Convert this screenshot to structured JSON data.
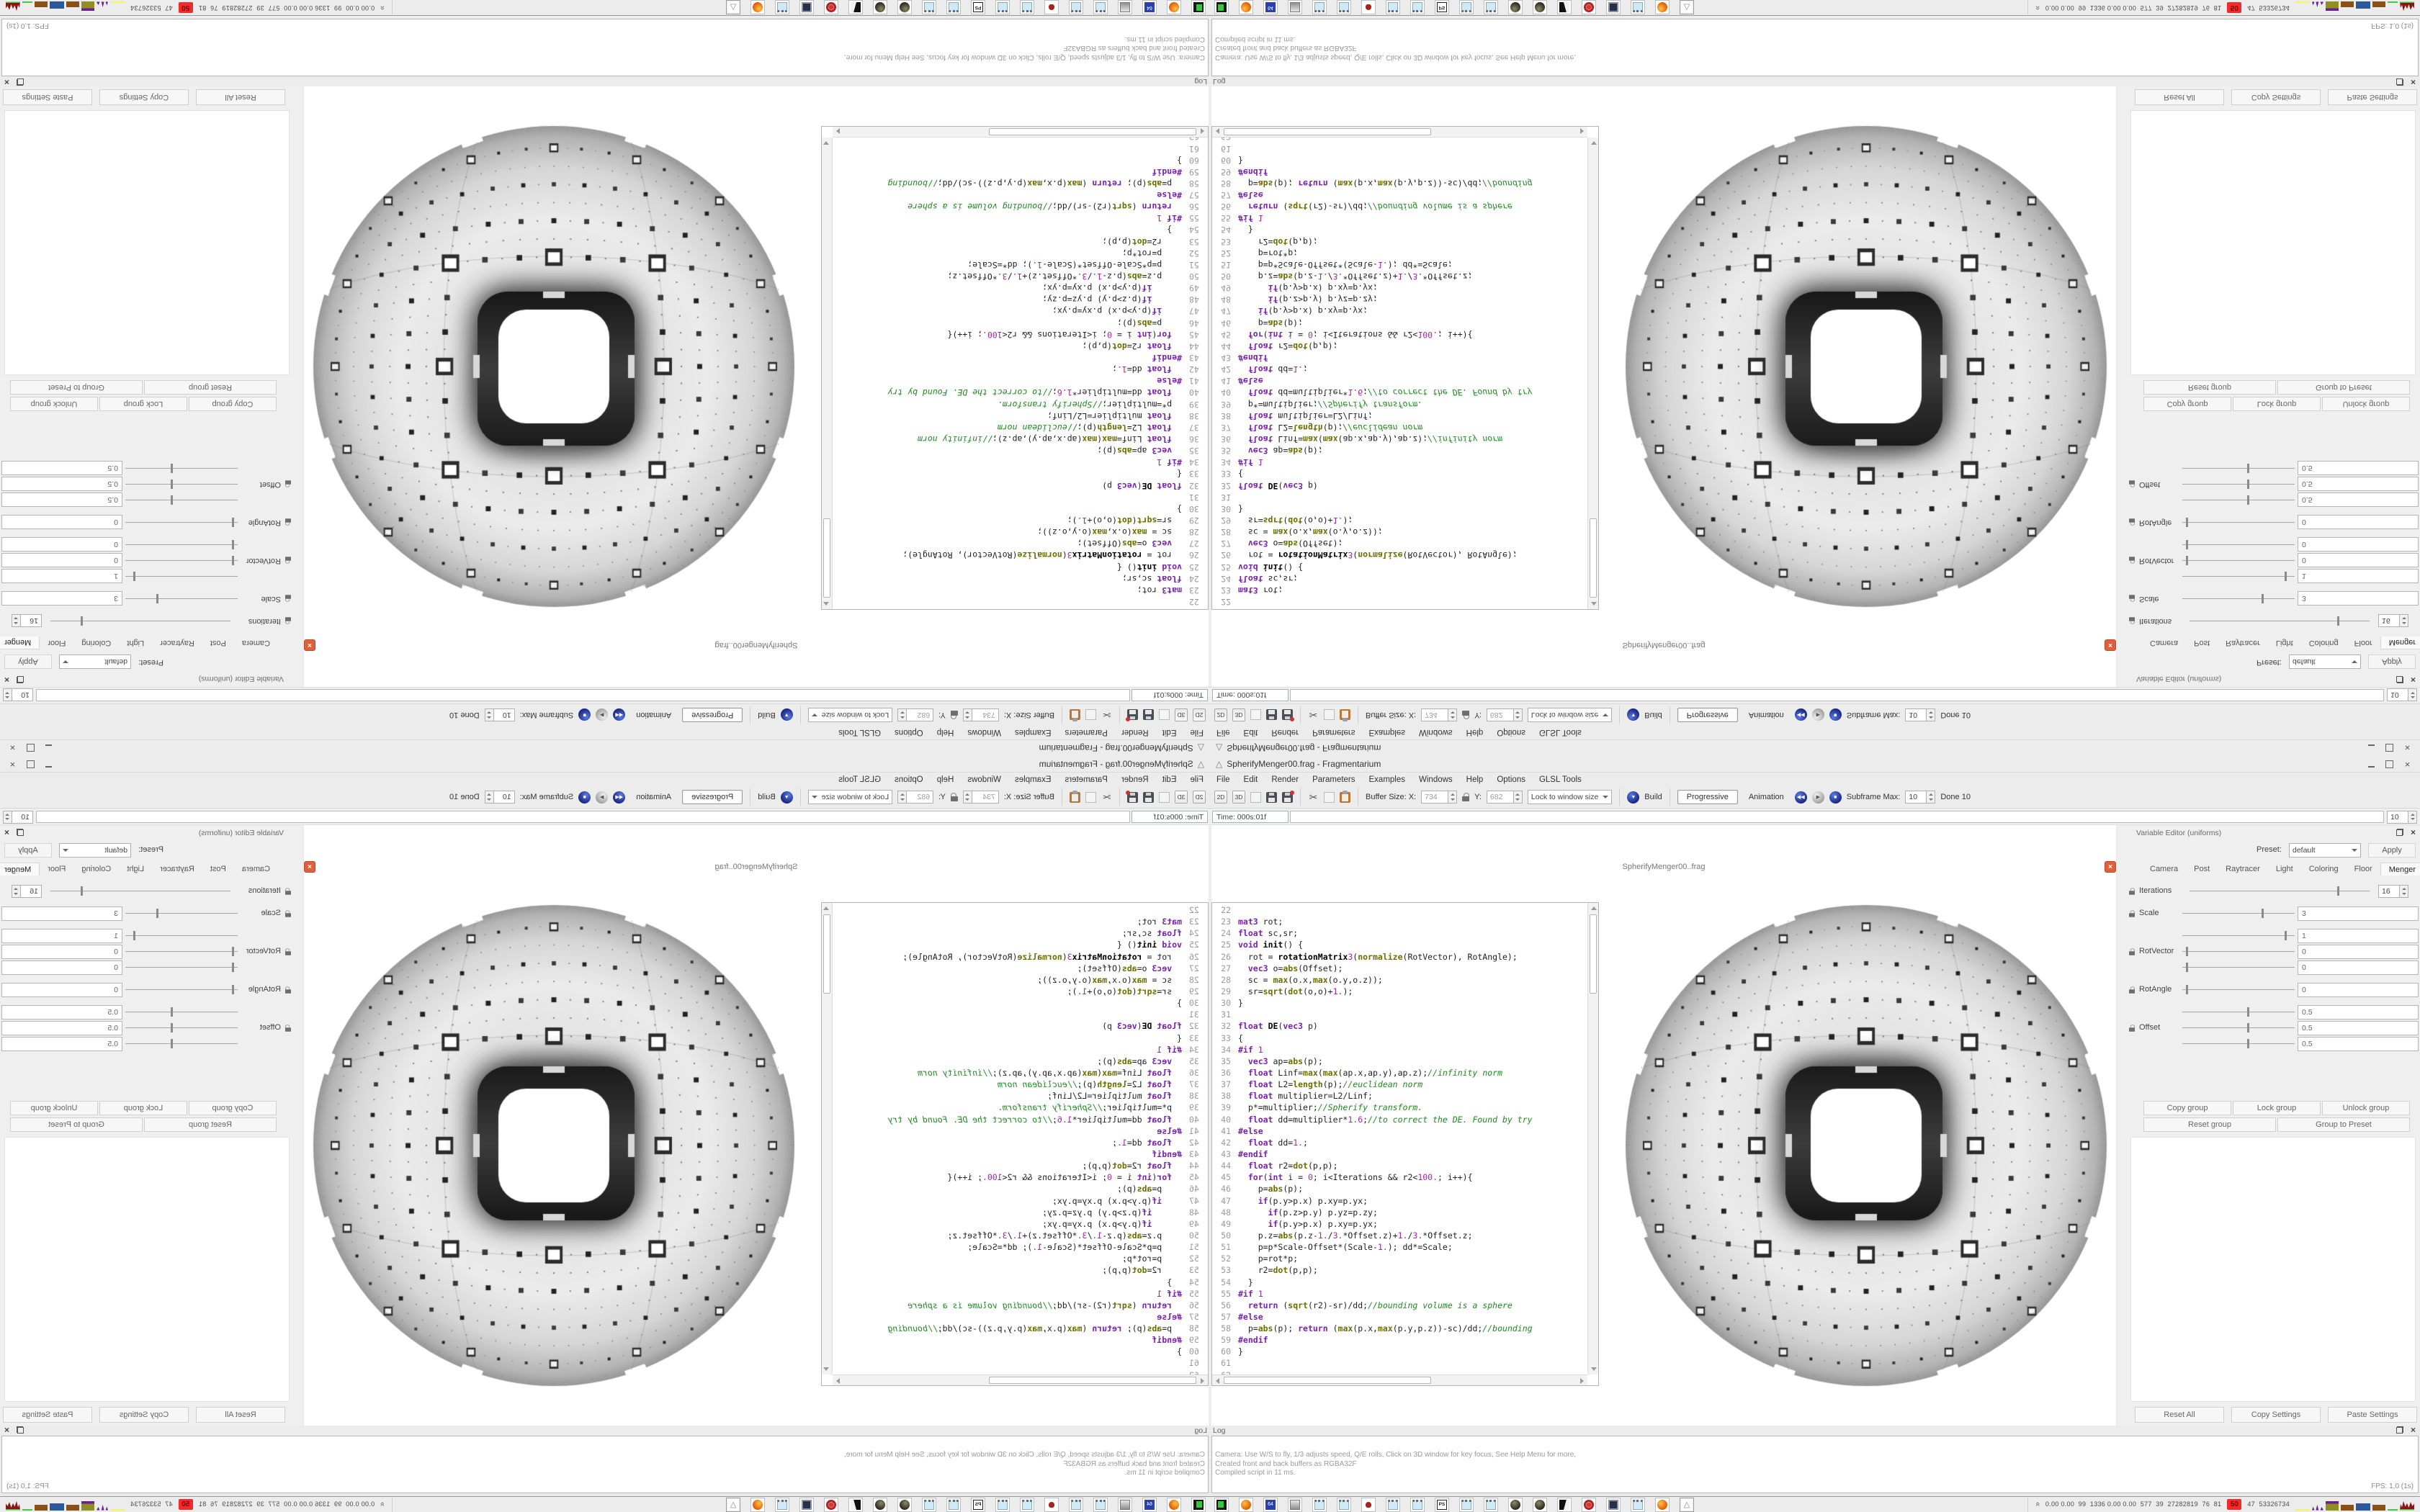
{
  "window": {
    "title": "SpherifyMenger00.frag - Fragmentarium",
    "controls": [
      "minimize",
      "maximize",
      "close"
    ]
  },
  "menu": {
    "items": [
      "File",
      "Edit",
      "Render",
      "Parameters",
      "Examples",
      "Windows",
      "Help",
      "Options",
      "GLSL Tools"
    ]
  },
  "toolbar": {
    "btn_2d": "2D",
    "btn_3d": "3D",
    "buffer_label": "Buffer Size: X:",
    "buffer_x": "734",
    "buffer_y_label": "Y:",
    "buffer_y": "682",
    "lock_combo": "Lock to window size",
    "build": "Build",
    "progressive": "Progressive",
    "animation": "Animation",
    "subframe_label": "Subframe Max:",
    "subframe_value": "10",
    "done": "Done 10"
  },
  "timebar": {
    "time_label": "Time: 000s:01f",
    "right_value": "10"
  },
  "editor_tab": {
    "label": "SpherifyMenger00..frag",
    "close_glyph": "x"
  },
  "code": {
    "lines": [
      [
        "22"
      ],
      [
        "23",
        [
          "k",
          "mat3"
        ],
        [
          "p",
          " rot;"
        ]
      ],
      [
        "24",
        [
          "k",
          "float"
        ],
        [
          "p",
          " sc,sr;"
        ]
      ],
      [
        "25",
        [
          "k",
          "void"
        ],
        [
          "p",
          " "
        ],
        [
          "f",
          "init"
        ],
        [
          "p",
          "() {"
        ]
      ],
      [
        "26",
        [
          "p",
          "  rot = "
        ],
        [
          "f",
          "rotationMatrix"
        ],
        [
          "n",
          "3"
        ],
        [
          "p",
          "("
        ],
        [
          "b",
          "normalize"
        ],
        [
          "p",
          "(RotVector), RotAngle);"
        ]
      ],
      [
        "27",
        [
          "p",
          "  "
        ],
        [
          "k",
          "vec3"
        ],
        [
          "p",
          " o="
        ],
        [
          "b",
          "abs"
        ],
        [
          "p",
          "(Offset);"
        ]
      ],
      [
        "28",
        [
          "p",
          "  sc = "
        ],
        [
          "b",
          "max"
        ],
        [
          "p",
          "(o.x,"
        ],
        [
          "b",
          "max"
        ],
        [
          "p",
          "(o.y,o.z));"
        ]
      ],
      [
        "29",
        [
          "p",
          "  sr="
        ],
        [
          "b",
          "sqrt"
        ],
        [
          "p",
          "("
        ],
        [
          "b",
          "dot"
        ],
        [
          "p",
          "(o,o)+"
        ],
        [
          "n",
          "1."
        ],
        [
          "p",
          ");"
        ]
      ],
      [
        "30",
        [
          "p",
          "}"
        ]
      ],
      [
        "31"
      ],
      [
        "32",
        [
          "k",
          "float"
        ],
        [
          "p",
          " "
        ],
        [
          "f",
          "DE"
        ],
        [
          "p",
          "("
        ],
        [
          "k",
          "vec3"
        ],
        [
          "p",
          " p)"
        ]
      ],
      [
        "33",
        [
          "p",
          "{"
        ]
      ],
      [
        "34",
        [
          "k",
          "#if"
        ],
        [
          "p",
          " "
        ],
        [
          "n",
          "1"
        ]
      ],
      [
        "35",
        [
          "p",
          "  "
        ],
        [
          "k",
          "vec3"
        ],
        [
          "p",
          " ap="
        ],
        [
          "b",
          "abs"
        ],
        [
          "p",
          "(p);"
        ]
      ],
      [
        "36",
        [
          "p",
          "  "
        ],
        [
          "k",
          "float"
        ],
        [
          "p",
          " Linf="
        ],
        [
          "b",
          "max"
        ],
        [
          "p",
          "("
        ],
        [
          "b",
          "max"
        ],
        [
          "p",
          "(ap.x,ap.y),ap.z);"
        ],
        [
          "c",
          "//infinity norm"
        ]
      ],
      [
        "37",
        [
          "p",
          "  "
        ],
        [
          "k",
          "float"
        ],
        [
          "p",
          " L2="
        ],
        [
          "b",
          "length"
        ],
        [
          "p",
          "(p);"
        ],
        [
          "c",
          "//euclidean norm"
        ]
      ],
      [
        "38",
        [
          "p",
          "  "
        ],
        [
          "k",
          "float"
        ],
        [
          "p",
          " multiplier=L2/Linf;"
        ]
      ],
      [
        "39",
        [
          "p",
          "  p*=multiplier;"
        ],
        [
          "c",
          "//Spherify transform."
        ]
      ],
      [
        "40",
        [
          "p",
          "  "
        ],
        [
          "k",
          "float"
        ],
        [
          "p",
          " dd=multiplier*"
        ],
        [
          "n",
          "1.6"
        ],
        [
          "p",
          ";"
        ],
        [
          "c",
          "//to correct the DE. Found by try"
        ]
      ],
      [
        "41",
        [
          "k",
          "#else"
        ]
      ],
      [
        "42",
        [
          "p",
          "  "
        ],
        [
          "k",
          "float"
        ],
        [
          "p",
          " dd="
        ],
        [
          "n",
          "1."
        ],
        [
          "p",
          ";"
        ]
      ],
      [
        "43",
        [
          "k",
          "#endif"
        ]
      ],
      [
        "44",
        [
          "p",
          "  "
        ],
        [
          "k",
          "float"
        ],
        [
          "p",
          " r2="
        ],
        [
          "b",
          "dot"
        ],
        [
          "p",
          "(p,p);"
        ]
      ],
      [
        "45",
        [
          "p",
          "  "
        ],
        [
          "k",
          "for"
        ],
        [
          "p",
          "("
        ],
        [
          "k",
          "int"
        ],
        [
          "p",
          " i = "
        ],
        [
          "n",
          "0"
        ],
        [
          "p",
          "; i<Iterations && r2<"
        ],
        [
          "n",
          "100."
        ],
        [
          "p",
          "; i++){"
        ]
      ],
      [
        "46",
        [
          "p",
          "    p="
        ],
        [
          "b",
          "abs"
        ],
        [
          "p",
          "(p);"
        ]
      ],
      [
        "47",
        [
          "p",
          "    "
        ],
        [
          "k",
          "if"
        ],
        [
          "p",
          "(p.y>p.x) p.xy=p.yx;"
        ]
      ],
      [
        "48",
        [
          "p",
          "      "
        ],
        [
          "k",
          "if"
        ],
        [
          "p",
          "(p.z>p.y) p.yz=p.zy;"
        ]
      ],
      [
        "49",
        [
          "p",
          "      "
        ],
        [
          "k",
          "if"
        ],
        [
          "p",
          "(p.y>p.x) p.xy=p.yx;"
        ]
      ],
      [
        "50",
        [
          "p",
          "    p.z="
        ],
        [
          "b",
          "abs"
        ],
        [
          "p",
          "(p.z-"
        ],
        [
          "n",
          "1."
        ],
        [
          "p",
          "/"
        ],
        [
          "n",
          "3."
        ],
        [
          "p",
          "*Offset.z)+"
        ],
        [
          "n",
          "1."
        ],
        [
          "p",
          "/"
        ],
        [
          "n",
          "3."
        ],
        [
          "p",
          "*Offset.z;"
        ]
      ],
      [
        "51",
        [
          "p",
          "    p=p*Scale-Offset*(Scale-"
        ],
        [
          "n",
          "1."
        ],
        [
          "p",
          "); dd*=Scale;"
        ]
      ],
      [
        "52",
        [
          "p",
          "    p=rot*p;"
        ]
      ],
      [
        "53",
        [
          "p",
          "    r2="
        ],
        [
          "b",
          "dot"
        ],
        [
          "p",
          "(p,p);"
        ]
      ],
      [
        "54",
        [
          "p",
          "  }"
        ]
      ],
      [
        "55",
        [
          "k",
          "#if"
        ],
        [
          "p",
          " "
        ],
        [
          "n",
          "1"
        ]
      ],
      [
        "56",
        [
          "p",
          "  "
        ],
        [
          "k",
          "return"
        ],
        [
          "p",
          " ("
        ],
        [
          "b",
          "sqrt"
        ],
        [
          "p",
          "(r2)-sr)/dd;"
        ],
        [
          "c",
          "//bounding volume is a sphere"
        ]
      ],
      [
        "57",
        [
          "k",
          "#else"
        ]
      ],
      [
        "58",
        [
          "p",
          "  p="
        ],
        [
          "b",
          "abs"
        ],
        [
          "p",
          "(p); "
        ],
        [
          "k",
          "return"
        ],
        [
          "p",
          " ("
        ],
        [
          "b",
          "max"
        ],
        [
          "p",
          "(p.x,"
        ],
        [
          "b",
          "max"
        ],
        [
          "p",
          "(p.y,p.z))-sc)/dd;"
        ],
        [
          "c",
          "//bounding"
        ]
      ],
      [
        "59",
        [
          "k",
          "#endif"
        ]
      ],
      [
        "60",
        [
          "p",
          "}"
        ]
      ],
      [
        "61"
      ],
      [
        "62"
      ]
    ]
  },
  "variable_editor": {
    "title": "Variable Editor (uniforms)",
    "preset_label": "Preset:",
    "preset_value": "default",
    "apply": "Apply",
    "tabs": [
      "Camera",
      "Post",
      "Raytracer",
      "Light",
      "Coloring",
      "Floor",
      "Menger"
    ],
    "active_tab": "Menger",
    "params": [
      {
        "label": "Iterations",
        "int": true,
        "rows": [
          {
            "v": "16",
            "pos": 0.83
          }
        ]
      },
      {
        "label": "Scale",
        "rows": [
          {
            "v": "3",
            "pos": 0.72
          }
        ]
      },
      {
        "label": "RotVector",
        "rows": [
          {
            "v": "1",
            "pos": 0.93
          },
          {
            "v": "0",
            "pos": 0.03
          },
          {
            "v": "0",
            "pos": 0.03
          }
        ]
      },
      {
        "label": "RotAngle",
        "rows": [
          {
            "v": "0",
            "pos": 0.03
          }
        ]
      },
      {
        "label": "Offset",
        "rows": [
          {
            "v": "0.5",
            "pos": 0.59
          },
          {
            "v": "0.5",
            "pos": 0.59
          },
          {
            "v": "0.5",
            "pos": 0.59
          }
        ]
      }
    ],
    "group_buttons": [
      "Copy group",
      "Lock group",
      "Unlock group"
    ],
    "group_buttons2": [
      "Reset group",
      "Group to Preset"
    ],
    "bottom_buttons": [
      "Reset All",
      "Copy Settings",
      "Paste Settings"
    ]
  },
  "log": {
    "title": "Log",
    "lines": [
      "Camera: Use W/S to fly, 1/3 adjusts speed, Q/E rolls, Click on 3D window for key focus, See Help Menu for more,",
      "Created front and back buffers as RGBA32F",
      "Compiled script in 11 ms."
    ],
    "fps": "FPS: 1,0 (1s)"
  },
  "taskbar": {
    "icons": [
      {
        "name": "terminal-icon",
        "type": "terminal"
      },
      {
        "name": "firefox-icon",
        "type": "firefox"
      },
      {
        "name": "floppy-save-icon",
        "type": "floppy",
        "glyph": "64"
      },
      {
        "name": "printer-icon",
        "type": "printer"
      },
      {
        "name": "notepad-icon",
        "type": "notepad"
      },
      {
        "name": "notepad-icon",
        "type": "notepad"
      },
      {
        "name": "bug-icon",
        "type": "bug"
      },
      {
        "name": "notepad-icon",
        "type": "notepad"
      },
      {
        "name": "notepad-icon",
        "type": "notepad"
      },
      {
        "name": "postscript-doc-icon",
        "type": "psdoc",
        "glyph": "PS"
      },
      {
        "name": "notepad-icon",
        "type": "notepad"
      },
      {
        "name": "notepad-icon",
        "type": "notepad"
      },
      {
        "name": "sphere-icon",
        "type": "sphere"
      },
      {
        "name": "sphere-icon",
        "type": "sphere"
      },
      {
        "name": "penguin-icon",
        "type": "penguin"
      },
      {
        "name": "red-emblem-icon",
        "type": "emblem"
      },
      {
        "name": "monitor-icon",
        "type": "monitor"
      },
      {
        "name": "notepad-icon",
        "type": "notepad"
      },
      {
        "name": "firefox-icon",
        "type": "firefox"
      },
      {
        "name": "fragmentarium-icon",
        "type": "fragmentarium",
        "glyph": "△",
        "active": true
      }
    ],
    "tray": {
      "numbers": "0.00 0.00  99  1336 0.00 0.00  577  39  27282819  76  81",
      "alert": "50",
      "numbers2": "47  53326734",
      "graphs": [
        "yellow-line",
        "purple-spikes",
        "olive-block",
        "brown-block",
        "blue-block",
        "brown-block",
        "green-line",
        "red-mountain"
      ]
    }
  },
  "preview": {
    "description": "spherified Menger sponge render, grayscale",
    "accent_colors": {
      "tab_close_red": "#e0603c",
      "tray_alert_red": "#f32a2a",
      "build_ball_blue": "#16247e"
    }
  }
}
